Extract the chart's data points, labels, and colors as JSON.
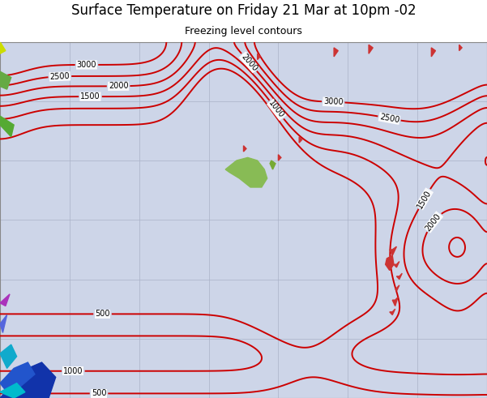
{
  "title": "Surface Temperature on Friday 21 Mar at 10pm -02",
  "subtitle": "Freezing level contours",
  "title_fontsize": 12,
  "subtitle_fontsize": 9,
  "map_bg": "#cdd5e8",
  "contour_color": "#cc0000",
  "contour_linewidth": 1.4,
  "contour_levels": [
    500,
    1000,
    1500,
    2000,
    2500,
    3000
  ],
  "label_fontsize": 7,
  "grid_color": "#aab2c8",
  "xlim": [
    -55,
    -20
  ],
  "ylim": [
    -62,
    -50
  ]
}
